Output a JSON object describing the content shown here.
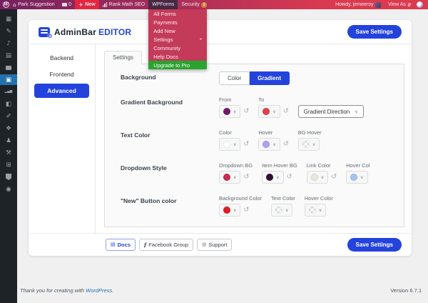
{
  "icons": {
    "wp_logo": "W",
    "home": "⌂",
    "plus": "+",
    "eye": "ø",
    "chevron": "∨",
    "doc": "▤",
    "facebook": "f",
    "support": "◎",
    "gear": "⚙"
  },
  "admin_bar": {
    "site": {
      "label": "Park Suggestion"
    },
    "comments": {
      "count": "0"
    },
    "new_item": {
      "label": "New"
    },
    "rank_math": {
      "label": "Rank Math SEO"
    },
    "wpforms": {
      "label": "WPForms"
    },
    "security": {
      "label": "Security",
      "badge": "2"
    },
    "howdy": "Howdy, jemeeroy",
    "view_as": "View As"
  },
  "wpforms_menu": {
    "items": [
      {
        "label": "All Forms"
      },
      {
        "label": "Payments"
      },
      {
        "label": "Add New"
      },
      {
        "label": "Settings",
        "arrow": "▸"
      },
      {
        "label": "Community"
      },
      {
        "label": "Help Docs"
      },
      {
        "label": "Upgrade to Pro"
      }
    ]
  },
  "sidebar": {
    "items": [
      {
        "name": "dashboard",
        "glyph": "▦"
      },
      {
        "name": "posts",
        "glyph": "✎"
      },
      {
        "name": "media",
        "glyph": "♪"
      },
      {
        "name": "pages",
        "glyph": "▤"
      },
      {
        "name": "comments",
        "glyph": ""
      },
      {
        "name": "adminbar-editor",
        "glyph": "▣"
      },
      {
        "name": "analytics",
        "glyph": "▂▄▆"
      },
      {
        "name": "templates",
        "glyph": "◧"
      },
      {
        "name": "appearance",
        "glyph": "✐"
      },
      {
        "name": "plugins",
        "glyph": "❖"
      },
      {
        "name": "users",
        "glyph": "♟"
      },
      {
        "name": "tools",
        "glyph": "⚒"
      },
      {
        "name": "settings",
        "glyph": "⊞"
      },
      {
        "name": "security",
        "glyph": ""
      },
      {
        "name": "collapse",
        "glyph": "◉"
      }
    ]
  },
  "plugin": {
    "brand_primary": "AdminBar",
    "brand_secondary": "EDITOR",
    "save_button": "Save Settings",
    "nav": [
      {
        "label": "Backend"
      },
      {
        "label": "Frontend"
      },
      {
        "label": "Advanced"
      }
    ],
    "settings_tab": "Settings",
    "rows": {
      "background": {
        "label": "Background",
        "options": [
          {
            "label": "Color"
          },
          {
            "label": "Gradient"
          }
        ]
      },
      "gradient": {
        "label": "Gradient Background",
        "fields": [
          {
            "label": "From",
            "color": "#701a66",
            "reset": "↺"
          },
          {
            "label": "To",
            "color": "#e23f4d",
            "reset": "↺"
          }
        ],
        "direction_select": "Gradient Direction"
      },
      "text_color": {
        "label": "Text Color",
        "fields": [
          {
            "label": "Color",
            "color": "#ffffff",
            "reset": "↺"
          },
          {
            "label": "Hover",
            "color": "#b49df2",
            "reset": "↺"
          },
          {
            "label": "BG Hover",
            "color": ""
          }
        ]
      },
      "dropdown_style": {
        "label": "Dropdown Style",
        "fields": [
          {
            "label": "Dropdown BG",
            "color": "#c72e52",
            "reset": "↺"
          },
          {
            "label": "Item Hover BG",
            "color": "#350b38",
            "reset": "↺"
          },
          {
            "label": "Link Color",
            "color": "#ece7de",
            "reset": "↺"
          },
          {
            "label": "Hover Col",
            "color": "#a6c3f2"
          }
        ]
      },
      "new_button": {
        "label": "\"New\" Button color",
        "fields": [
          {
            "label": "Background Color",
            "color": "#de1f26",
            "reset": "↺"
          },
          {
            "label": "Text Color",
            "color": ""
          },
          {
            "label": "Hover Color",
            "color": ""
          }
        ]
      }
    },
    "footer": {
      "buttons": [
        {
          "label": "Docs"
        },
        {
          "label": "Facebook Group"
        },
        {
          "label": "Support"
        }
      ],
      "save_button": "Save Settings"
    }
  },
  "page_footer": {
    "thanks_prefix": "Thank you for creating with ",
    "thanks_link": "WordPress",
    "thanks_suffix": ".",
    "version": "Version 6.7.1"
  },
  "colors": {
    "accent": "#2443dd",
    "bar_gradient_from": "#73205f",
    "bar_gradient_to": "#dc3a4d",
    "menu_bg": "#c43a59",
    "upgrade_green": "#2aa32f",
    "sidebar_bg": "#1d2327",
    "sidebar_active": "#2271b1"
  }
}
